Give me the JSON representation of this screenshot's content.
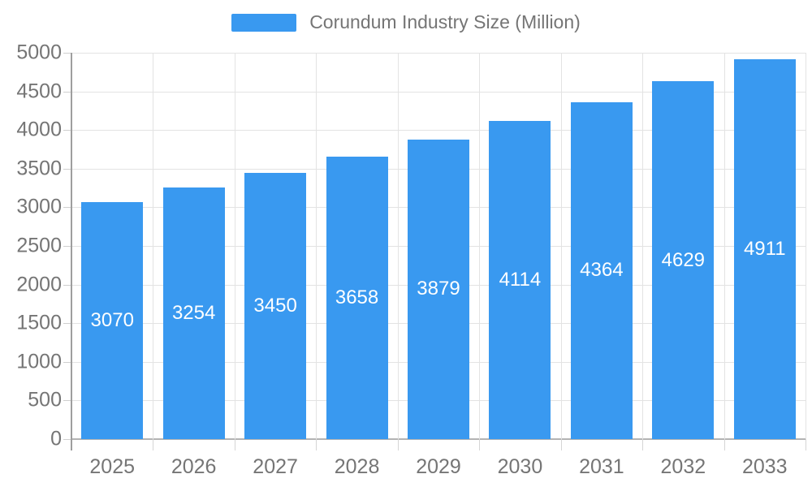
{
  "legend": {
    "label": "Corundum Industry Size (Million)"
  },
  "colors": {
    "bar": "#3999F0",
    "grid": "#E3E3E3",
    "x_axis_line": "#B3B3B3",
    "y_axis_line": "#9E9E9E",
    "tick": "#D5D5D5",
    "axis_label_text": "#757575",
    "value_label_text": "#FFFFFF",
    "background": "#FFFFFF"
  },
  "chart_data": {
    "type": "bar",
    "title": "Corundum Industry Size (Million)",
    "categories": [
      "2025",
      "2026",
      "2027",
      "2028",
      "2029",
      "2030",
      "2031",
      "2032",
      "2033"
    ],
    "series": [
      {
        "name": "Corundum Industry Size (Million)",
        "values": [
          3070,
          3254,
          3450,
          3658,
          3879,
          4114,
          4364,
          4629,
          4911
        ]
      }
    ],
    "xlabel": "",
    "ylabel": "",
    "ylim": [
      0,
      5000
    ],
    "ytick_step": 500,
    "grid": true,
    "legend_position": "top",
    "value_labels": "inside-center"
  }
}
